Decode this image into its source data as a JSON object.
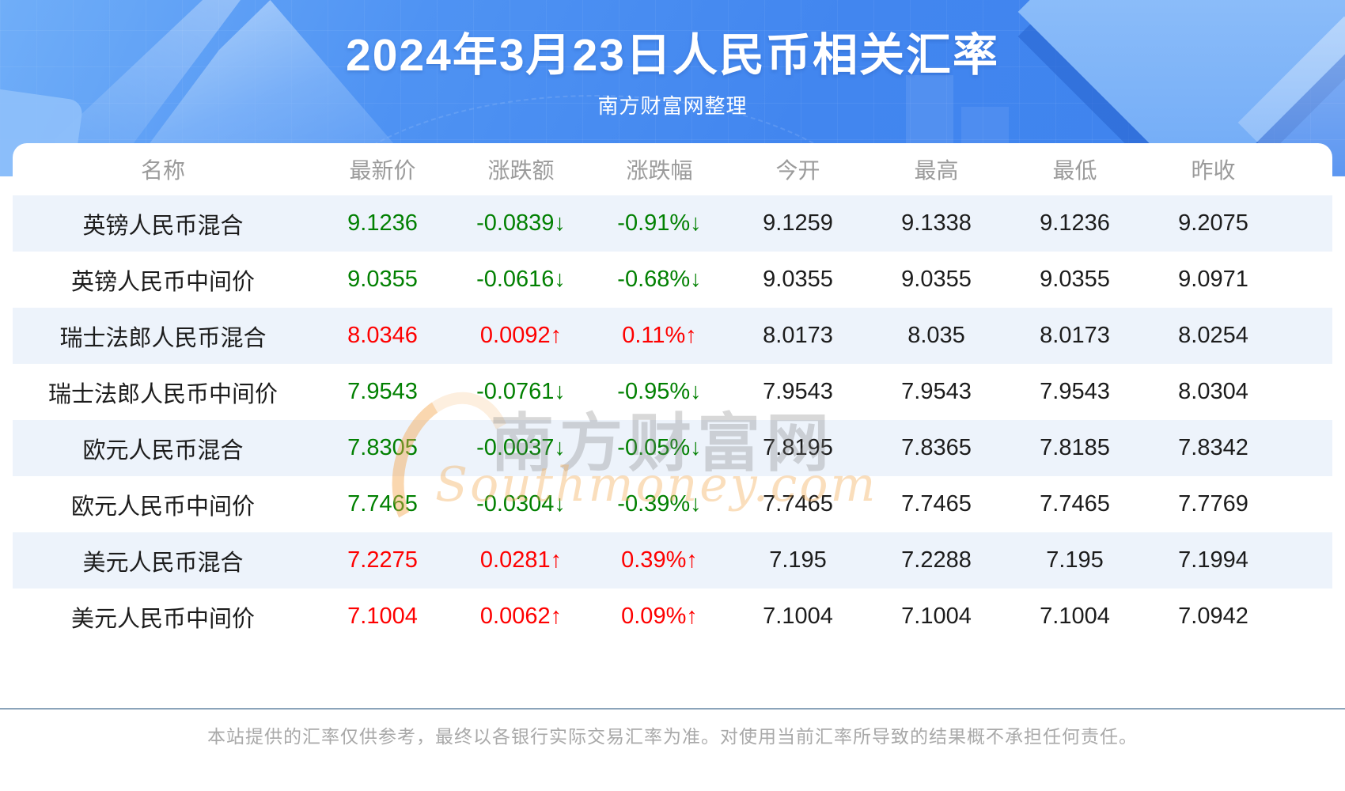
{
  "header": {
    "title": "2024年3月23日人民币相关汇率",
    "subtitle": "南方财富网整理"
  },
  "watermark": {
    "cn": "南方财富网",
    "en": "Southmoney.com"
  },
  "chart_data": {
    "type": "table",
    "title": "2024年3月23日人民币相关汇率",
    "columns": [
      "名称",
      "最新价",
      "涨跌额",
      "涨跌幅",
      "今开",
      "最高",
      "最低",
      "昨收"
    ],
    "rows": [
      {
        "name": "英镑人民币混合",
        "last": "9.1236",
        "change": "-0.0839↓",
        "pct": "-0.91%↓",
        "open": "9.1259",
        "high": "9.1338",
        "low": "9.1236",
        "prev": "9.2075",
        "trend": "down"
      },
      {
        "name": "英镑人民币中间价",
        "last": "9.0355",
        "change": "-0.0616↓",
        "pct": "-0.68%↓",
        "open": "9.0355",
        "high": "9.0355",
        "low": "9.0355",
        "prev": "9.0971",
        "trend": "down"
      },
      {
        "name": "瑞士法郎人民币混合",
        "last": "8.0346",
        "change": "0.0092↑",
        "pct": "0.11%↑",
        "open": "8.0173",
        "high": "8.035",
        "low": "8.0173",
        "prev": "8.0254",
        "trend": "up"
      },
      {
        "name": "瑞士法郎人民币中间价",
        "last": "7.9543",
        "change": "-0.0761↓",
        "pct": "-0.95%↓",
        "open": "7.9543",
        "high": "7.9543",
        "low": "7.9543",
        "prev": "8.0304",
        "trend": "down"
      },
      {
        "name": "欧元人民币混合",
        "last": "7.8305",
        "change": "-0.0037↓",
        "pct": "-0.05%↓",
        "open": "7.8195",
        "high": "7.8365",
        "low": "7.8185",
        "prev": "7.8342",
        "trend": "down"
      },
      {
        "name": "欧元人民币中间价",
        "last": "7.7465",
        "change": "-0.0304↓",
        "pct": "-0.39%↓",
        "open": "7.7465",
        "high": "7.7465",
        "low": "7.7465",
        "prev": "7.7769",
        "trend": "down"
      },
      {
        "name": "美元人民币混合",
        "last": "7.2275",
        "change": "0.0281↑",
        "pct": "0.39%↑",
        "open": "7.195",
        "high": "7.2288",
        "low": "7.195",
        "prev": "7.1994",
        "trend": "up"
      },
      {
        "name": "美元人民币中间价",
        "last": "7.1004",
        "change": "0.0062↑",
        "pct": "0.09%↑",
        "open": "7.1004",
        "high": "7.1004",
        "low": "7.1004",
        "prev": "7.0942",
        "trend": "up"
      }
    ]
  },
  "footer": {
    "disclaimer": "本站提供的汇率仅供参考，最终以各银行实际交易汇率为准。对使用当前汇率所导致的结果概不承担任何责任。"
  },
  "colors": {
    "up_red": "#fe0000",
    "down_green": "#018001",
    "hero_blue": "#4286ef",
    "stripe": "#edf3fb"
  }
}
